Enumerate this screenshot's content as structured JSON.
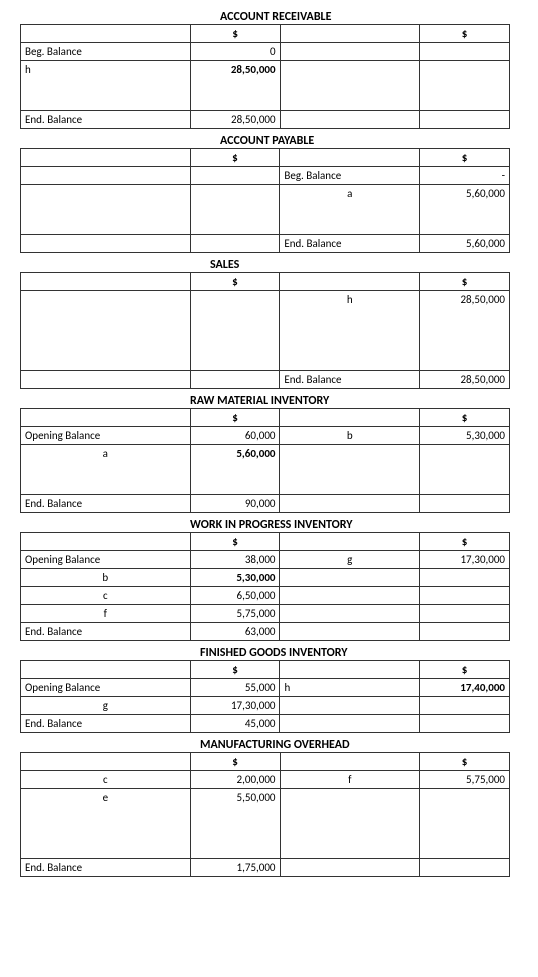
{
  "accounts": [
    {
      "title": "ACCOUNT RECEIVABLE",
      "title_padding": 200,
      "header": {
        "col2": "$",
        "col4": "$"
      },
      "rows": [
        {
          "l_label": "Beg. Balance",
          "l_val": "0",
          "r_label": "",
          "r_val": "",
          "cls": ""
        },
        {
          "l_label": "h",
          "l_val": "28,50,000",
          "r_label": "",
          "r_val": "",
          "cls": "tall",
          "bold_val": true
        }
      ],
      "footer": {
        "l_label": "End. Balance",
        "l_val": "28,50,000",
        "r_label": "",
        "r_val": ""
      }
    },
    {
      "title": "ACCOUNT PAYABLE",
      "title_padding": 200,
      "header": {
        "col2": "$",
        "col4": "$"
      },
      "rows": [
        {
          "l_label": "",
          "l_val": "",
          "r_label": "Beg. Balance",
          "r_val": "-",
          "cls": ""
        },
        {
          "l_label": "",
          "l_val": "",
          "r_label_center": "a",
          "r_val": "5,60,000",
          "cls": "tall",
          "bold_val": true
        }
      ],
      "footer": {
        "l_label": "",
        "l_val": "",
        "r_label": "End. Balance",
        "r_val": "5,60,000"
      }
    },
    {
      "title": "SALES",
      "title_padding": 190,
      "header": {
        "col2": "$",
        "col4": "$"
      },
      "rows": [
        {
          "l_label": "",
          "l_val": "",
          "r_label_center": "h",
          "r_val": "28,50,000",
          "cls": "vtaller"
        }
      ],
      "footer": {
        "l_label": "",
        "l_val": "",
        "r_label": "End. Balance",
        "r_val": "28,50,000"
      }
    },
    {
      "title": "RAW MATERIAL INVENTORY",
      "title_padding": 170,
      "header": {
        "col2": "$",
        "col4": "$"
      },
      "rows": [
        {
          "l_label": "Opening Balance",
          "l_val": "60,000",
          "r_label_center": "b",
          "r_val": "5,30,000",
          "cls": ""
        },
        {
          "l_label_center": "a",
          "l_val": "5,60,000",
          "r_label": "",
          "r_val": "",
          "cls": "tall",
          "bold_val": true
        }
      ],
      "footer": {
        "l_label": "End. Balance",
        "l_val": "90,000",
        "r_label": "",
        "r_val": ""
      }
    },
    {
      "title": "WORK IN PROGRESS INVENTORY",
      "title_padding": 170,
      "header": {
        "col2": "$",
        "col4": "$"
      },
      "rows": [
        {
          "l_label": "Opening Balance",
          "l_val": "38,000",
          "r_label_center": "g",
          "r_val": "17,30,000",
          "cls": ""
        },
        {
          "l_label_center": "b",
          "l_val": "5,30,000",
          "r_label": "",
          "r_val": "",
          "cls": "",
          "bold_val": true
        },
        {
          "l_label_center": "c",
          "l_val": "6,50,000",
          "r_label": "",
          "r_val": "",
          "cls": ""
        },
        {
          "l_label_center": "f",
          "l_val": "5,75,000",
          "r_label": "",
          "r_val": "",
          "cls": ""
        }
      ],
      "footer": {
        "l_label": "End. Balance",
        "l_val": "63,000",
        "r_label": "",
        "r_val": ""
      }
    },
    {
      "title": "FINISHED GOODS INVENTORY",
      "title_padding": 180,
      "header": {
        "col2": "$",
        "col4": "$"
      },
      "rows": [
        {
          "l_label": "Opening Balance",
          "l_val": "55,000",
          "r_label": "h",
          "r_val": "17,40,000",
          "cls": "",
          "bold_rval": true
        },
        {
          "l_label_center": "g",
          "l_val": "17,30,000",
          "r_label": "",
          "r_val": "",
          "cls": ""
        }
      ],
      "footer": {
        "l_label": "End. Balance",
        "l_val": "45,000",
        "r_label": "",
        "r_val": ""
      }
    },
    {
      "title": "MANUFACTURING OVERHEAD",
      "title_padding": 180,
      "header": {
        "col2": "$",
        "col4": "$"
      },
      "rows": [
        {
          "l_label_center": "c",
          "l_val": "2,00,000",
          "r_label_center": "f",
          "r_val": "5,75,000",
          "cls": ""
        },
        {
          "l_label_center": "e",
          "l_val": "5,50,000",
          "r_label": "",
          "r_val": "",
          "cls": "taller"
        }
      ],
      "footer": {
        "l_label": "End. Balance",
        "l_val": "1,75,000",
        "r_label": "",
        "r_val": ""
      }
    }
  ]
}
